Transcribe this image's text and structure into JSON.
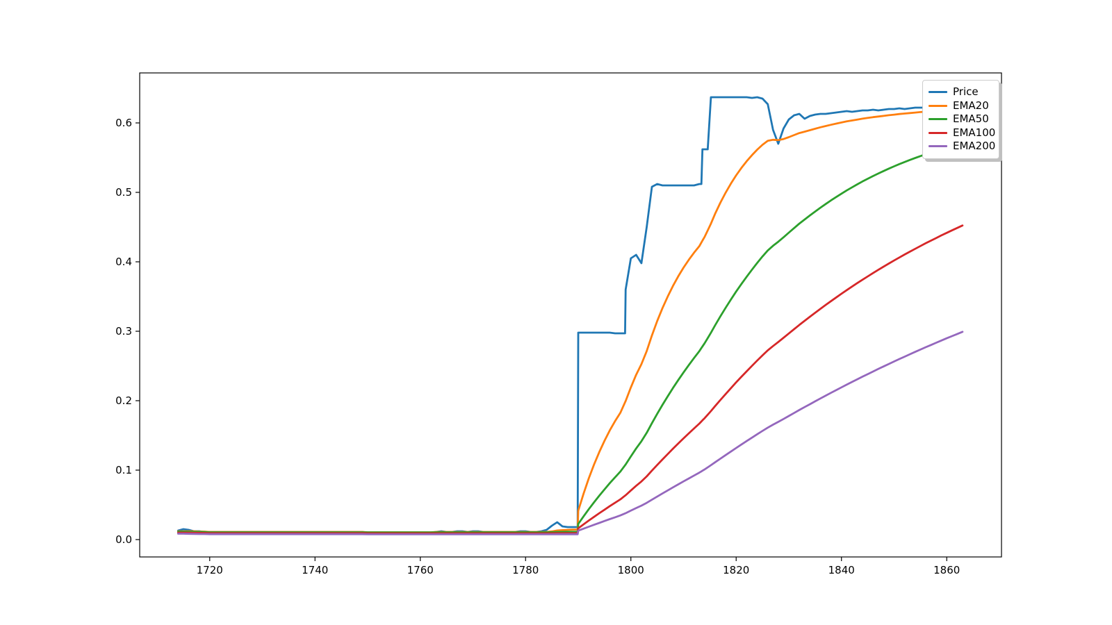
{
  "figure": {
    "background": "#ffffff",
    "spine_color": "#000000",
    "tick_label_color": "#000000"
  },
  "legend": {
    "position": "upper right",
    "entries": [
      "Price",
      "EMA20",
      "EMA50",
      "EMA100",
      "EMA200"
    ]
  },
  "chart_data": {
    "type": "line",
    "title": "",
    "xlabel": "",
    "ylabel": "",
    "grid": false,
    "legend_position": "upper right",
    "xlim": [
      1706.7,
      1870.4
    ],
    "ylim": [
      -0.025,
      0.672
    ],
    "x_ticks": [
      1720,
      1740,
      1760,
      1780,
      1800,
      1820,
      1840,
      1860
    ],
    "y_ticks": [
      0.0,
      0.1,
      0.2,
      0.3,
      0.4,
      0.5,
      0.6
    ],
    "y_tick_labels": [
      "0.0",
      "0.1",
      "0.2",
      "0.3",
      "0.4",
      "0.5",
      "0.6"
    ],
    "x": [
      1714,
      1715,
      1716,
      1717,
      1718,
      1719,
      1720,
      1721,
      1722,
      1723,
      1724,
      1725,
      1726,
      1727,
      1728,
      1729,
      1730,
      1731,
      1732,
      1733,
      1734,
      1735,
      1736,
      1737,
      1738,
      1739,
      1740,
      1741,
      1742,
      1743,
      1744,
      1745,
      1746,
      1747,
      1748,
      1749,
      1750,
      1751,
      1752,
      1753,
      1754,
      1755,
      1756,
      1757,
      1758,
      1759,
      1760,
      1761,
      1762,
      1763,
      1764,
      1765,
      1766,
      1767,
      1768,
      1769,
      1770,
      1771,
      1772,
      1773,
      1774,
      1775,
      1776,
      1777,
      1778,
      1779,
      1780,
      1781,
      1782,
      1783,
      1784,
      1785,
      1786,
      1787,
      1788,
      1789,
      1789.9,
      1790,
      1791,
      1792,
      1793,
      1794,
      1795,
      1796,
      1797,
      1798,
      1798.9,
      1799,
      1800,
      1801,
      1802,
      1803,
      1804,
      1805,
      1806,
      1807,
      1808,
      1809,
      1810,
      1811,
      1812,
      1813,
      1813.4,
      1813.6,
      1814,
      1814.6,
      1815.2,
      1816,
      1817,
      1818,
      1819,
      1820,
      1821,
      1822,
      1823,
      1824,
      1825,
      1826,
      1827,
      1828,
      1829,
      1830,
      1831,
      1832,
      1833,
      1834,
      1835,
      1836,
      1837,
      1838,
      1839,
      1840,
      1841,
      1842,
      1843,
      1844,
      1845,
      1846,
      1847,
      1848,
      1849,
      1850,
      1851,
      1852,
      1853,
      1854,
      1855,
      1856,
      1857,
      1858,
      1859,
      1860,
      1861,
      1862,
      1863
    ],
    "series": [
      {
        "name": "Price",
        "color": "#1f77b4",
        "values": [
          0.013,
          0.015,
          0.014,
          0.012,
          0.012,
          0.011,
          0.011,
          0.011,
          0.011,
          0.011,
          0.011,
          0.011,
          0.011,
          0.011,
          0.011,
          0.011,
          0.011,
          0.011,
          0.011,
          0.011,
          0.011,
          0.011,
          0.011,
          0.011,
          0.011,
          0.011,
          0.011,
          0.011,
          0.011,
          0.011,
          0.011,
          0.011,
          0.011,
          0.011,
          0.011,
          0.011,
          0.01,
          0.01,
          0.01,
          0.01,
          0.01,
          0.01,
          0.01,
          0.01,
          0.01,
          0.01,
          0.01,
          0.01,
          0.01,
          0.011,
          0.012,
          0.011,
          0.011,
          0.012,
          0.012,
          0.011,
          0.012,
          0.012,
          0.011,
          0.011,
          0.011,
          0.011,
          0.011,
          0.011,
          0.011,
          0.012,
          0.012,
          0.011,
          0.011,
          0.012,
          0.014,
          0.02,
          0.025,
          0.019,
          0.018,
          0.018,
          0.018,
          0.298,
          0.298,
          0.298,
          0.298,
          0.298,
          0.298,
          0.298,
          0.297,
          0.297,
          0.297,
          0.36,
          0.405,
          0.41,
          0.398,
          0.45,
          0.508,
          0.512,
          0.51,
          0.51,
          0.51,
          0.51,
          0.51,
          0.51,
          0.51,
          0.512,
          0.512,
          0.562,
          0.562,
          0.562,
          0.637,
          0.637,
          0.637,
          0.637,
          0.637,
          0.637,
          0.637,
          0.637,
          0.636,
          0.637,
          0.635,
          0.627,
          0.59,
          0.57,
          0.592,
          0.605,
          0.611,
          0.613,
          0.606,
          0.61,
          0.612,
          0.613,
          0.613,
          0.614,
          0.615,
          0.616,
          0.617,
          0.616,
          0.617,
          0.618,
          0.618,
          0.619,
          0.618,
          0.619,
          0.62,
          0.62,
          0.621,
          0.62,
          0.621,
          0.622,
          0.622,
          0.622,
          0.623,
          0.623,
          0.623,
          0.624,
          0.624,
          0.624,
          0.624
        ]
      },
      {
        "name": "EMA20",
        "color": "#ff7f0e",
        "values": [
          0.012,
          0.012,
          0.012,
          0.012,
          0.0115,
          0.0115,
          0.011,
          0.011,
          0.011,
          0.011,
          0.011,
          0.011,
          0.011,
          0.011,
          0.011,
          0.011,
          0.011,
          0.011,
          0.011,
          0.011,
          0.011,
          0.011,
          0.011,
          0.011,
          0.011,
          0.011,
          0.011,
          0.011,
          0.011,
          0.011,
          0.011,
          0.011,
          0.011,
          0.011,
          0.011,
          0.011,
          0.0105,
          0.0105,
          0.0105,
          0.0105,
          0.0105,
          0.0105,
          0.0105,
          0.0105,
          0.0105,
          0.0105,
          0.0105,
          0.0105,
          0.0105,
          0.011,
          0.011,
          0.011,
          0.011,
          0.011,
          0.011,
          0.011,
          0.011,
          0.011,
          0.011,
          0.011,
          0.011,
          0.011,
          0.011,
          0.011,
          0.011,
          0.011,
          0.011,
          0.011,
          0.011,
          0.011,
          0.011,
          0.0118,
          0.0131,
          0.0136,
          0.014,
          0.0144,
          0.0145,
          0.0415,
          0.0659,
          0.088,
          0.108,
          0.1261,
          0.1425,
          0.1573,
          0.1706,
          0.1826,
          0.1978,
          0.1995,
          0.2191,
          0.2373,
          0.2526,
          0.2714,
          0.2939,
          0.3147,
          0.3333,
          0.3501,
          0.3653,
          0.3791,
          0.3916,
          0.4029,
          0.4131,
          0.4225,
          0.4278,
          0.4305,
          0.4358,
          0.4452,
          0.4549,
          0.4691,
          0.4851,
          0.4996,
          0.5127,
          0.5245,
          0.5352,
          0.5449,
          0.5536,
          0.5615,
          0.5685,
          0.5742,
          0.5757,
          0.5752,
          0.5768,
          0.5795,
          0.5825,
          0.5854,
          0.5874,
          0.5895,
          0.5916,
          0.5937,
          0.5955,
          0.5973,
          0.599,
          0.6006,
          0.6022,
          0.6035,
          0.6048,
          0.6061,
          0.6072,
          0.6083,
          0.6092,
          0.6101,
          0.6111,
          0.6119,
          0.6128,
          0.6135,
          0.6142,
          0.6149,
          0.6156,
          0.6162,
          0.6168,
          0.6174,
          0.6179,
          0.6185,
          0.619,
          0.6194,
          0.6198
        ]
      },
      {
        "name": "EMA50",
        "color": "#2ca02c",
        "values": [
          0.0115,
          0.0115,
          0.0112,
          0.0112,
          0.011,
          0.011,
          0.0105,
          0.0105,
          0.0105,
          0.0105,
          0.0105,
          0.0105,
          0.0105,
          0.0105,
          0.0105,
          0.0105,
          0.0105,
          0.0105,
          0.0105,
          0.0105,
          0.0105,
          0.0105,
          0.0105,
          0.0105,
          0.0105,
          0.0105,
          0.0105,
          0.0105,
          0.0105,
          0.0105,
          0.0105,
          0.0105,
          0.0105,
          0.0105,
          0.0105,
          0.0105,
          0.0103,
          0.0103,
          0.0103,
          0.0103,
          0.0103,
          0.0103,
          0.0103,
          0.0103,
          0.0103,
          0.0103,
          0.0103,
          0.0103,
          0.0103,
          0.0105,
          0.0105,
          0.0105,
          0.0105,
          0.0105,
          0.0105,
          0.0105,
          0.0105,
          0.0105,
          0.0105,
          0.0105,
          0.0105,
          0.0105,
          0.0105,
          0.0105,
          0.0105,
          0.0105,
          0.0105,
          0.0105,
          0.0105,
          0.0105,
          0.0105,
          0.0107,
          0.011,
          0.0111,
          0.0112,
          0.0112,
          0.0112,
          0.0225,
          0.0333,
          0.0437,
          0.0536,
          0.0632,
          0.0724,
          0.0813,
          0.0897,
          0.0979,
          0.1071,
          0.1081,
          0.1198,
          0.1312,
          0.1416,
          0.1537,
          0.1676,
          0.1811,
          0.194,
          0.2064,
          0.2183,
          0.2297,
          0.2407,
          0.2513,
          0.2614,
          0.2713,
          0.2759,
          0.2781,
          0.2827,
          0.2901,
          0.2978,
          0.3085,
          0.3214,
          0.3338,
          0.3457,
          0.3572,
          0.3681,
          0.3786,
          0.3887,
          0.3984,
          0.4077,
          0.4163,
          0.4231,
          0.4289,
          0.4353,
          0.442,
          0.4486,
          0.455,
          0.4609,
          0.4667,
          0.4724,
          0.4779,
          0.4832,
          0.4884,
          0.4933,
          0.4981,
          0.5028,
          0.5072,
          0.5115,
          0.5157,
          0.5196,
          0.5235,
          0.5271,
          0.5307,
          0.5342,
          0.5375,
          0.5407,
          0.5437,
          0.5467,
          0.5495,
          0.5522,
          0.5548,
          0.5573,
          0.5598,
          0.5621,
          0.5643,
          0.5664,
          0.5685,
          0.5704
        ]
      },
      {
        "name": "EMA100",
        "color": "#d62728",
        "values": [
          0.01,
          0.01,
          0.0098,
          0.0097,
          0.0096,
          0.0095,
          0.0092,
          0.0092,
          0.0092,
          0.0092,
          0.0092,
          0.0092,
          0.0092,
          0.0092,
          0.0092,
          0.0092,
          0.0092,
          0.0092,
          0.0092,
          0.0092,
          0.0092,
          0.0092,
          0.0092,
          0.0092,
          0.0092,
          0.0092,
          0.0092,
          0.0092,
          0.0092,
          0.0092,
          0.0092,
          0.0092,
          0.0092,
          0.0092,
          0.0092,
          0.0092,
          0.009,
          0.009,
          0.009,
          0.009,
          0.009,
          0.009,
          0.009,
          0.009,
          0.009,
          0.009,
          0.009,
          0.009,
          0.009,
          0.009,
          0.009,
          0.009,
          0.009,
          0.009,
          0.009,
          0.009,
          0.009,
          0.009,
          0.009,
          0.009,
          0.009,
          0.009,
          0.009,
          0.009,
          0.009,
          0.009,
          0.009,
          0.009,
          0.009,
          0.009,
          0.009,
          0.0091,
          0.0092,
          0.0092,
          0.0092,
          0.0092,
          0.0092,
          0.0163,
          0.0219,
          0.0274,
          0.0327,
          0.038,
          0.0431,
          0.0482,
          0.0531,
          0.0579,
          0.0633,
          0.0639,
          0.0707,
          0.0774,
          0.0837,
          0.091,
          0.0993,
          0.1074,
          0.1154,
          0.1232,
          0.1309,
          0.1384,
          0.1458,
          0.153,
          0.16,
          0.167,
          0.1701,
          0.1717,
          0.1748,
          0.1798,
          0.185,
          0.1922,
          0.201,
          0.2096,
          0.2181,
          0.2264,
          0.2345,
          0.2424,
          0.2502,
          0.2578,
          0.2653,
          0.2725,
          0.2787,
          0.2845,
          0.2906,
          0.2968,
          0.303,
          0.3091,
          0.315,
          0.3209,
          0.3266,
          0.3323,
          0.3379,
          0.3433,
          0.3487,
          0.354,
          0.3592,
          0.3643,
          0.3693,
          0.3742,
          0.379,
          0.3838,
          0.3884,
          0.393,
          0.3975,
          0.4019,
          0.4062,
          0.4105,
          0.4146,
          0.4187,
          0.4227,
          0.4267,
          0.4305,
          0.4343,
          0.4381,
          0.4417,
          0.4453,
          0.4488,
          0.4523
        ]
      },
      {
        "name": "EMA200",
        "color": "#9467bd",
        "values": [
          0.0085,
          0.0085,
          0.0083,
          0.0082,
          0.008,
          0.008,
          0.0078,
          0.0078,
          0.0078,
          0.0078,
          0.0078,
          0.0078,
          0.0078,
          0.0078,
          0.0078,
          0.0078,
          0.0078,
          0.0078,
          0.0078,
          0.0078,
          0.0078,
          0.0078,
          0.0078,
          0.0078,
          0.0078,
          0.0078,
          0.0078,
          0.0078,
          0.0078,
          0.0078,
          0.0078,
          0.0078,
          0.0078,
          0.0078,
          0.0078,
          0.0078,
          0.0076,
          0.0076,
          0.0076,
          0.0076,
          0.0076,
          0.0076,
          0.0076,
          0.0076,
          0.0076,
          0.0076,
          0.0076,
          0.0076,
          0.0076,
          0.0076,
          0.0076,
          0.0076,
          0.0076,
          0.0076,
          0.0076,
          0.0076,
          0.0076,
          0.0076,
          0.0076,
          0.0076,
          0.0076,
          0.0076,
          0.0076,
          0.0076,
          0.0076,
          0.0076,
          0.0076,
          0.0076,
          0.0076,
          0.0076,
          0.0076,
          0.0076,
          0.0077,
          0.0077,
          0.0077,
          0.0077,
          0.0077,
          0.0129,
          0.0157,
          0.0185,
          0.0213,
          0.024,
          0.0268,
          0.0295,
          0.0321,
          0.0348,
          0.0377,
          0.038,
          0.0417,
          0.0454,
          0.0489,
          0.0529,
          0.0574,
          0.0619,
          0.0664,
          0.0708,
          0.0752,
          0.0795,
          0.0838,
          0.088,
          0.0922,
          0.0964,
          0.0982,
          0.0992,
          0.101,
          0.104,
          0.1071,
          0.1113,
          0.1165,
          0.1217,
          0.1268,
          0.1319,
          0.1369,
          0.1419,
          0.1468,
          0.1517,
          0.1565,
          0.1612,
          0.1655,
          0.1695,
          0.1737,
          0.178,
          0.1823,
          0.1866,
          0.1908,
          0.1949,
          0.1991,
          0.2032,
          0.2072,
          0.2113,
          0.2152,
          0.2192,
          0.2231,
          0.227,
          0.2308,
          0.2346,
          0.2383,
          0.242,
          0.2457,
          0.2493,
          0.2529,
          0.2565,
          0.26,
          0.2634,
          0.2669,
          0.2703,
          0.2736,
          0.277,
          0.2802,
          0.2835,
          0.2867,
          0.2899,
          0.293,
          0.2961,
          0.2992
        ]
      }
    ]
  }
}
